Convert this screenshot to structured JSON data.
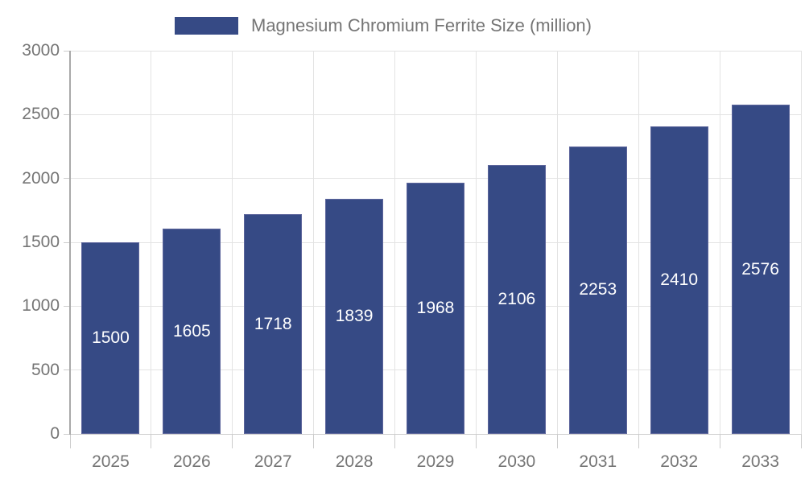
{
  "legend": {
    "label": "Magnesium Chromium Ferrite Size (million)"
  },
  "chart_data": {
    "type": "bar",
    "title": "Magnesium Chromium Ferrite Size (million)",
    "series": [
      {
        "name": "Magnesium Chromium Ferrite Size (million)",
        "values": [
          1500,
          1605,
          1718,
          1839,
          1968,
          2106,
          2253,
          2410,
          2576
        ]
      }
    ],
    "categories": [
      "2025",
      "2026",
      "2027",
      "2028",
      "2029",
      "2030",
      "2031",
      "2032",
      "2033"
    ],
    "xlabel": "",
    "ylabel": "",
    "ylim": [
      0,
      3000
    ],
    "yticks": [
      0,
      500,
      1000,
      1500,
      2000,
      2500,
      3000
    ],
    "grid": true,
    "legend_position": "top",
    "value_labels_inside_bars": true,
    "colors": {
      "bar": "#364a85",
      "bar_border": "#5d669c",
      "value_label": "#ffffff",
      "axis_text": "#757575",
      "gridline": "#e3e3e3",
      "axis_line": "#a9a9a9",
      "tick": "#cccccc"
    }
  }
}
